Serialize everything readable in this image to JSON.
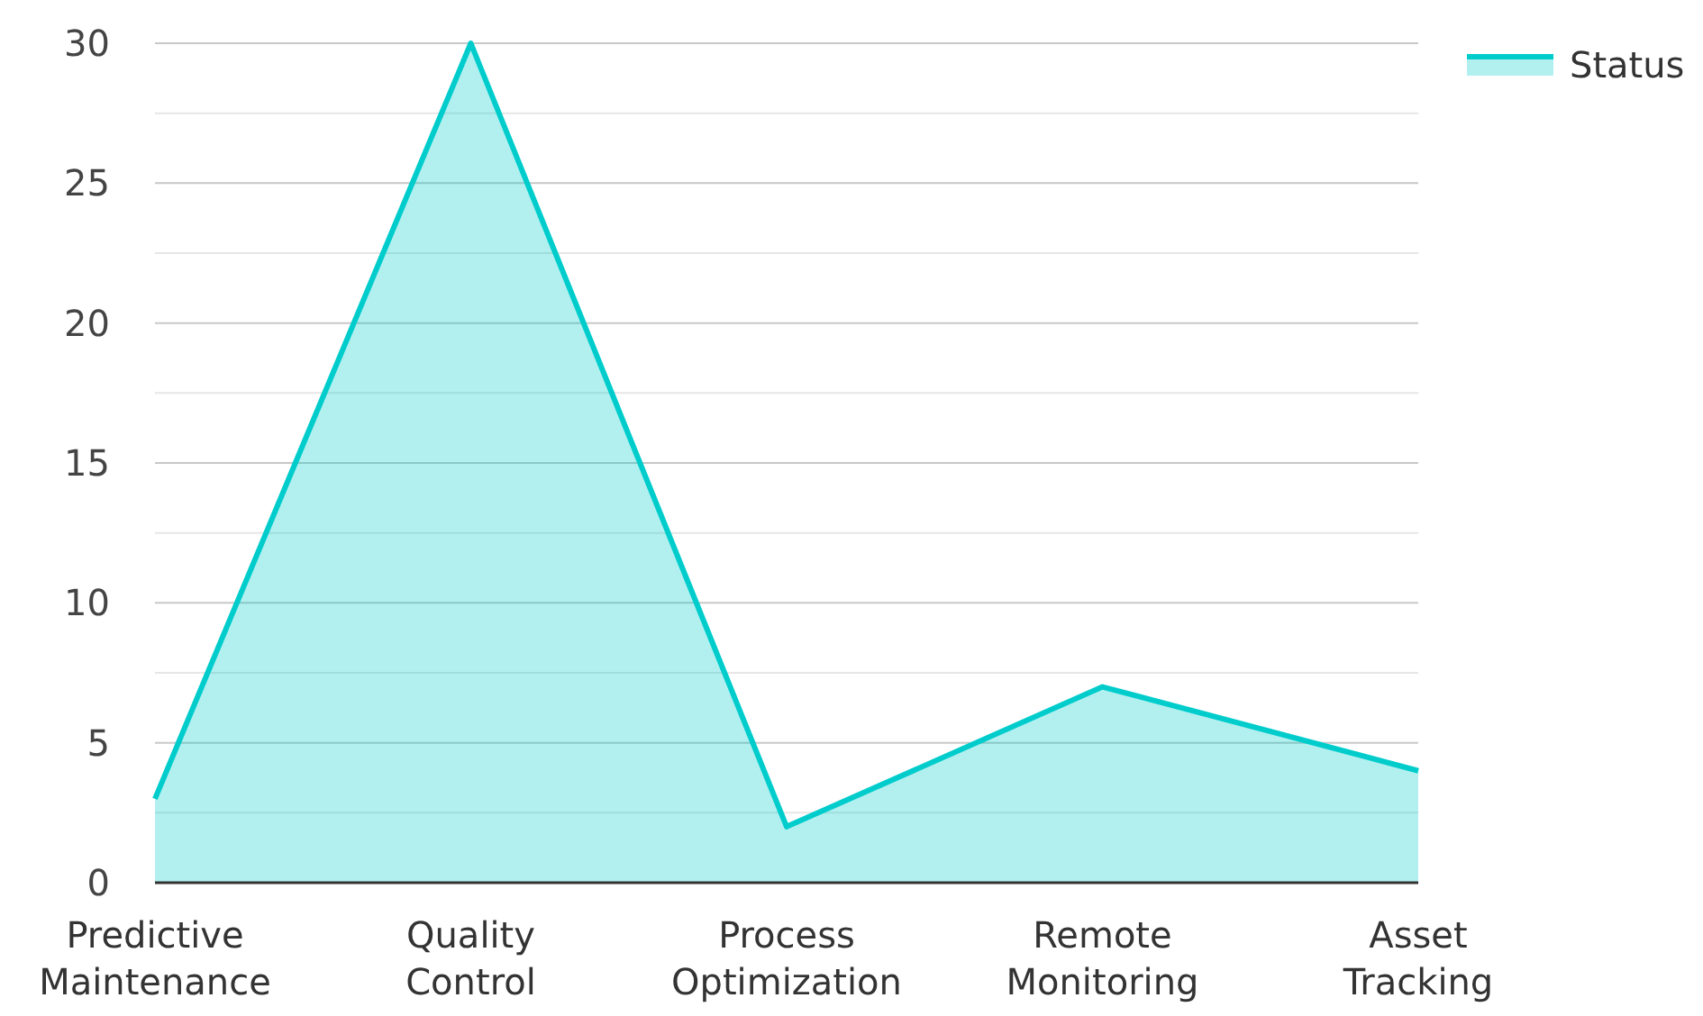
{
  "chart_data": {
    "type": "area",
    "categories": [
      "Predictive Maintenance",
      "Quality Control",
      "Process Optimization",
      "Remote Monitoring",
      "Asset Tracking"
    ],
    "series": [
      {
        "name": "Status",
        "color": "#00cccc",
        "values": [
          3,
          30,
          2,
          7,
          4
        ]
      }
    ],
    "ylim": [
      0,
      30
    ],
    "yticks": [
      0,
      {
        "value": 2.5,
        "label": null
      },
      5,
      {
        "value": 7.5,
        "label": null
      },
      10,
      {
        "value": 12.5,
        "label": null
      },
      15,
      {
        "value": 17.5,
        "label": null
      },
      20,
      {
        "value": 22.5,
        "label": null
      },
      25,
      {
        "value": 27.5,
        "label": null
      },
      30
    ],
    "grid": "y",
    "legend": "top right"
  }
}
